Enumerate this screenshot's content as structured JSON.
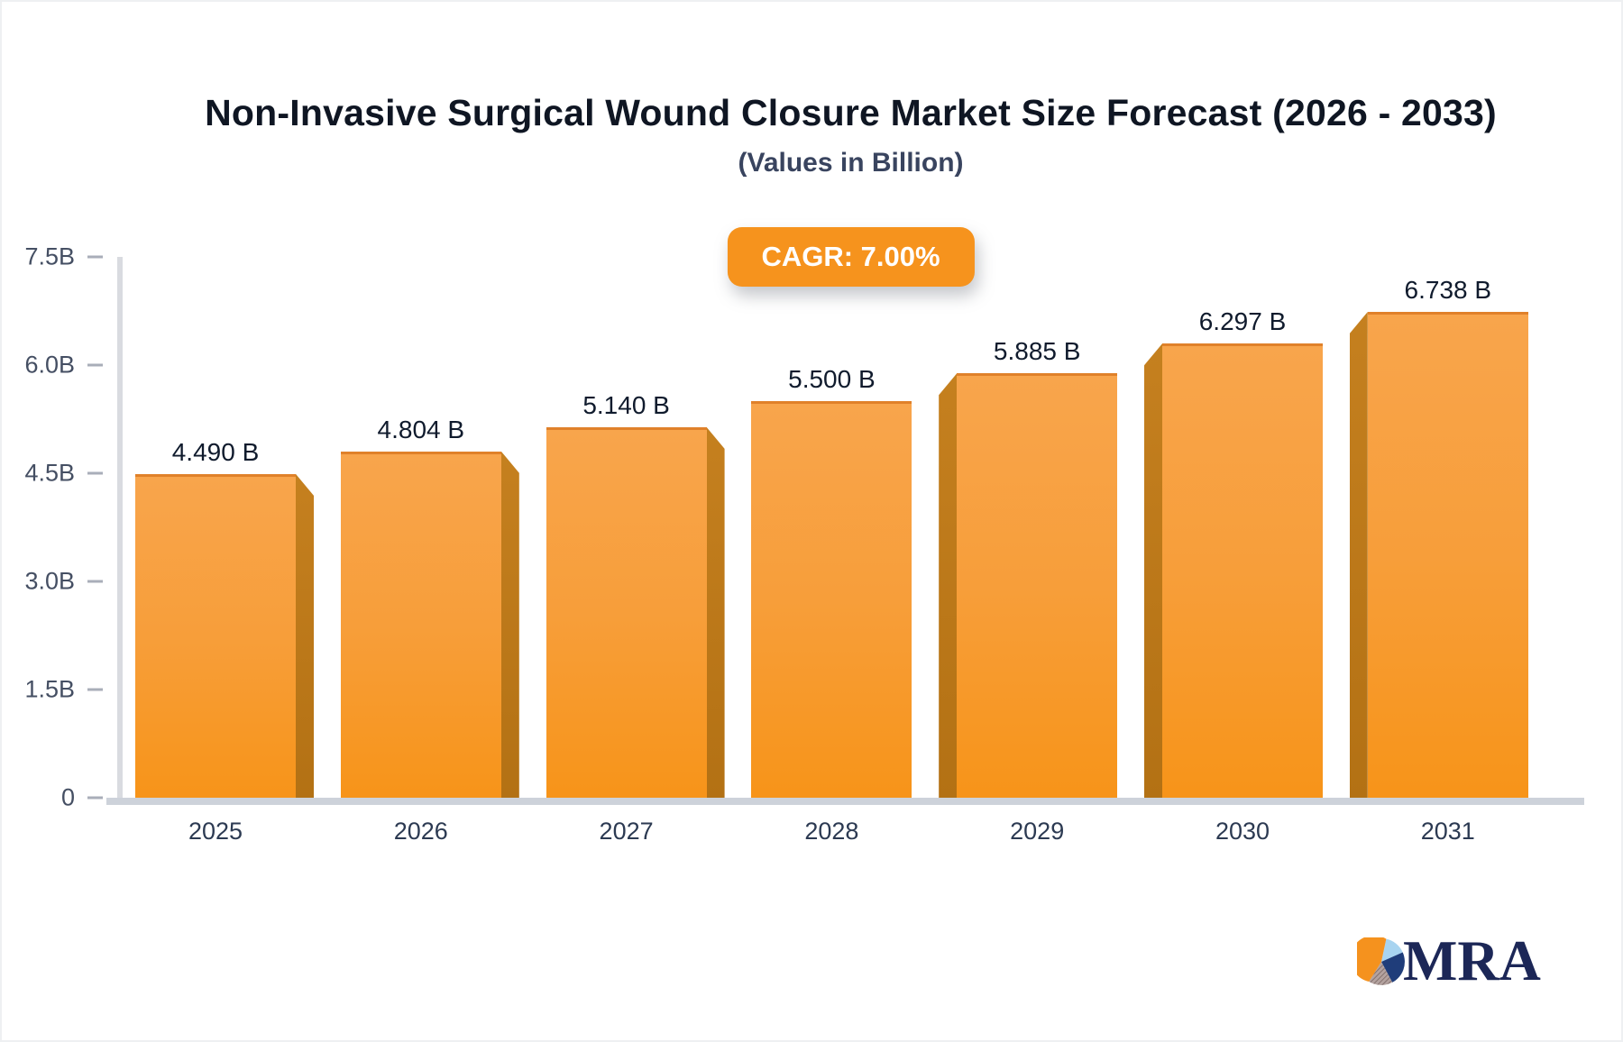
{
  "title": "Non-Invasive Surgical Wound Closure Market Size Forecast (2026 - 2033)",
  "subtitle": "(Values in Billion)",
  "cagr_badge": "CAGR: 7.00%",
  "logo": {
    "text": "MRA"
  },
  "colors": {
    "bar_face_top": "#f8a54c",
    "bar_face_bottom": "#f79419",
    "bar_side": "#b87418",
    "badge_bg": "#f6931d",
    "title_text": "#0f1623",
    "subtitle_text": "#39445f",
    "axis_line": "#d9dbe0",
    "baseline": "#cdd2da",
    "pie_orange": "#f5921e",
    "pie_lightblue": "#a8d4f0",
    "pie_navy": "#1f3d7a",
    "pie_hatch": "#a89391"
  },
  "chart_data": {
    "type": "bar",
    "title": "Non-Invasive Surgical Wound Closure Market Size Forecast (2026 - 2033)",
    "subtitle": "(Values in Billion)",
    "cagr": "7.00%",
    "categories": [
      "2025",
      "2026",
      "2027",
      "2028",
      "2029",
      "2030",
      "2031"
    ],
    "values": [
      4.49,
      4.804,
      5.14,
      5.5,
      5.885,
      6.297,
      6.738
    ],
    "value_labels": [
      "4.490 B",
      "4.804 B",
      "5.140 B",
      "5.500 B",
      "5.885 B",
      "6.297 B",
      "6.738 B"
    ],
    "xlabel": "",
    "ylabel": "",
    "ylim": [
      0,
      7.5
    ],
    "grid": false,
    "legend": false,
    "yticks": [
      {
        "value": 0.0,
        "label": "0"
      },
      {
        "value": 1.5,
        "label": "1.5B"
      },
      {
        "value": 3.0,
        "label": "3.0B"
      },
      {
        "value": 4.5,
        "label": "4.5B"
      },
      {
        "value": 6.0,
        "label": "6.0B"
      },
      {
        "value": 7.5,
        "label": "7.5B"
      }
    ]
  }
}
